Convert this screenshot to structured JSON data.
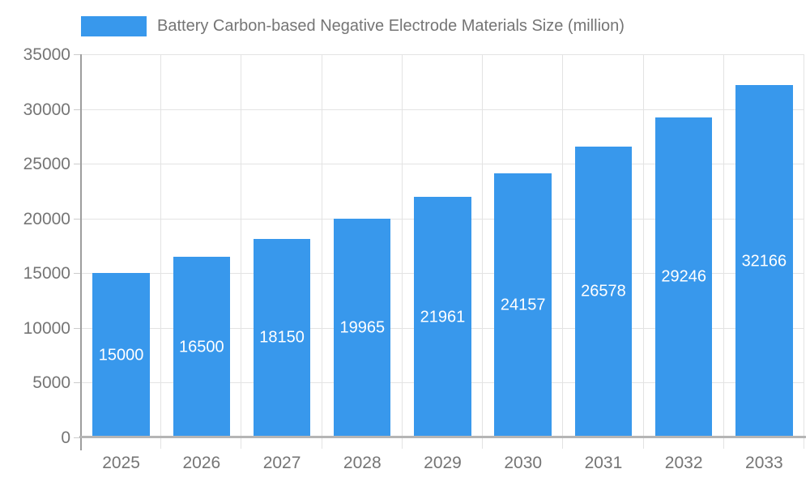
{
  "chart_data": {
    "type": "bar",
    "title": "Battery Carbon-based Negative Electrode Materials Size (million)",
    "categories": [
      "2025",
      "2026",
      "2027",
      "2028",
      "2029",
      "2030",
      "2031",
      "2032",
      "2033"
    ],
    "values": [
      15000,
      16500,
      18150,
      19965,
      21961,
      24157,
      26578,
      29246,
      32166
    ],
    "ylim": [
      0,
      35000
    ],
    "ytick_step": 5000,
    "ytick_labels": [
      "0",
      "5000",
      "10000",
      "15000",
      "20000",
      "25000",
      "30000",
      "35000"
    ],
    "grid": true,
    "legend_position": "top",
    "bar_color": "#3898EC",
    "value_label_color": "#ffffff",
    "axis_text_color": "#757575",
    "gridline_color": "#e3e3e3"
  },
  "legend": {
    "label": "Battery Carbon-based Negative Electrode Materials Size (million)"
  }
}
